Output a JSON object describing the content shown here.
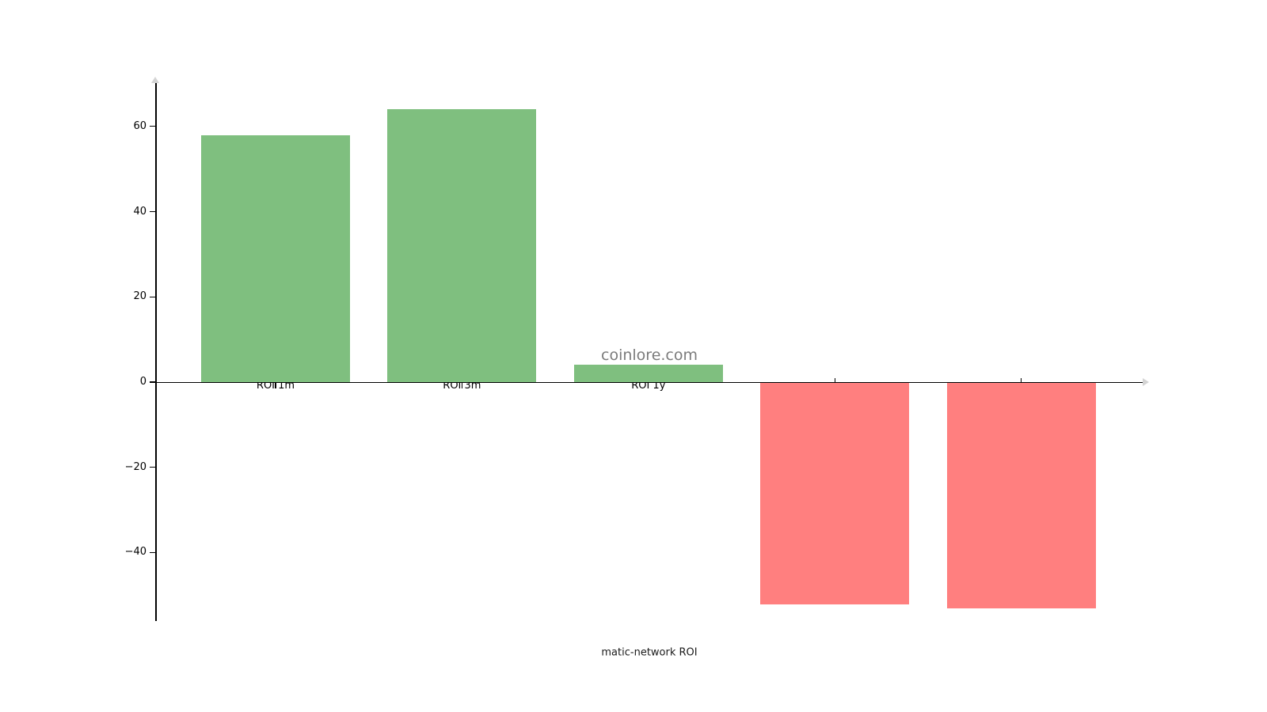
{
  "page": {
    "background": "#ffffff"
  },
  "watermark": {
    "text": "coinlore.com",
    "color": "#7b7b7b"
  },
  "chart_title": {
    "text": "matic-network ROI"
  },
  "chart_data": {
    "type": "bar",
    "title": "matic-network ROI",
    "categories": [
      "ROI 1m",
      "ROI 3m",
      "ROI 1y",
      "",
      ""
    ],
    "values": [
      58,
      64,
      4,
      -52,
      -53
    ],
    "xlabel": "",
    "ylabel": "",
    "yticks": [
      -40,
      -20,
      0,
      20,
      40,
      60
    ],
    "ylim": [
      -56,
      70
    ],
    "grid": false,
    "legend_position": "none",
    "positive_color": "#7fbf7f",
    "negative_color": "#ff7f7f",
    "axis_color": "#000000"
  }
}
